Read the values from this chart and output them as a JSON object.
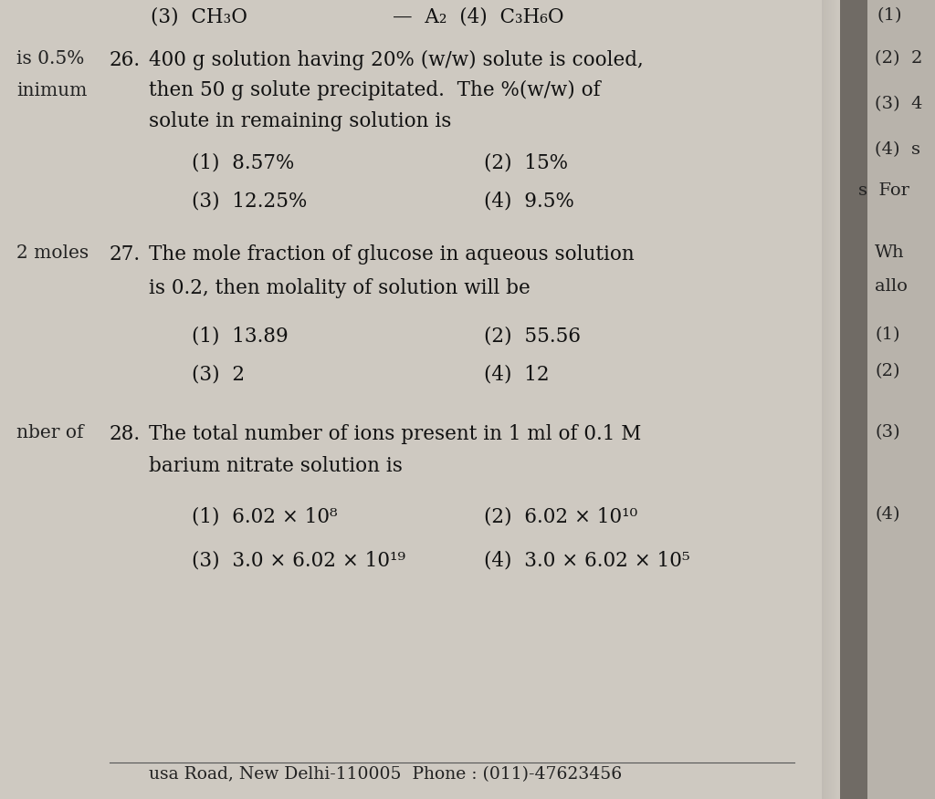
{
  "bg_color": "#c8c3bb",
  "main_bg": "#d8d3cb",
  "right_shadow_color": "#8a8680",
  "right_panel_color": "#b0aba3",
  "text_color": "#1a1a1a",
  "title_top_left": "is 0.5%",
  "title_top_left2": "inimum",
  "title_top_left3": "2 moles",
  "title_top_left4": "nber of",
  "q26_number": "26.",
  "q26_text_line1": "400 g solution having 20% (w/w) solute is cooled,",
  "q26_text_line2": "then 50 g solute precipitated.  The %(w/w) of",
  "q26_text_line3": "solute in remaining solution is",
  "q26_opt1": "(1)  8.57%",
  "q26_opt2": "(2)  15%",
  "q26_opt3": "(3)  12.25%",
  "q26_opt4": "(4)  9.5%",
  "q27_number": "27.",
  "q27_text_line1": "The mole fraction of glucose in aqueous solution",
  "q27_text_line2": "is 0.2, then molality of solution will be",
  "q27_opt1": "(1)  13.89",
  "q27_opt2": "(2)  55.56",
  "q27_opt3": "(3)  2",
  "q27_opt4": "(4)  12",
  "q28_number": "28.",
  "q28_text_line1": "The total number of ions present in 1 ml of 0.1 M",
  "q28_text_line2": "barium nitrate solution is",
  "q28_opt1": "(1)  6.02 × 10⁸",
  "q28_opt2": "(2)  6.02 × 10¹⁰",
  "q28_opt3": "(3)  3.0 × 6.02 × 10¹⁹",
  "q28_opt4": "(4)  3.0 × 6.02 × 10⁵",
  "footer": "usa Road, New Delhi-110005  Phone : (011)-47623456",
  "top_line_left": "(3)  CH₃O",
  "top_line_mid": "—  A₂  (4)  C₃H₆O",
  "rc1": "(1)",
  "rc2": "(2)  2",
  "rc3": "(3)  4",
  "rc4": "(4)  s",
  "rc5": "s  For",
  "rc6": "Wh",
  "rc7": "allo",
  "rc8": "(1)",
  "rc9": "(2)",
  "rc10": "(3)",
  "rc11": "(4)"
}
